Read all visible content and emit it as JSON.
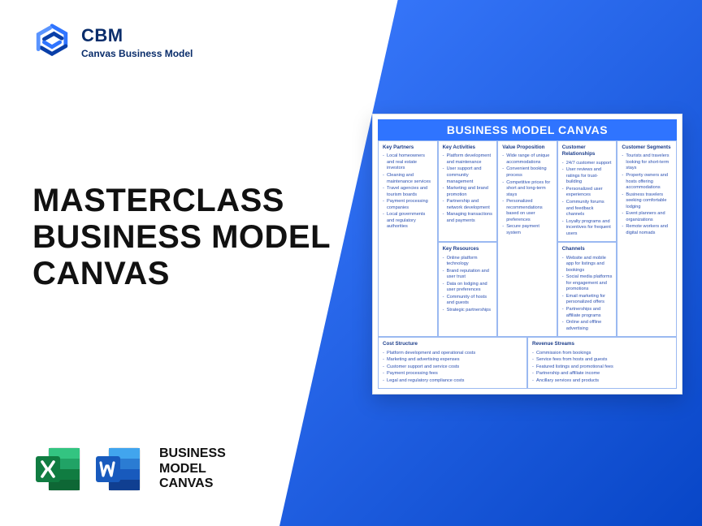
{
  "colors": {
    "blue_gradient_start": "#3b7bff",
    "blue_gradient_end": "#0846c7",
    "canvas_header": "#2f74ff",
    "cell_border": "#9bb9f1",
    "cell_text": "#2a4fb0",
    "heading_text": "#111111",
    "logo_text": "#0a2d6b",
    "excel_green_dark": "#107c41",
    "excel_green_light": "#21a366",
    "word_blue_dark": "#185abd",
    "word_blue_light": "#2b7cd3"
  },
  "logo": {
    "abbr": "CBM",
    "full": "Canvas Business Model"
  },
  "headline": {
    "line1": "MASTERCLASS",
    "line2": "BUSINESS MODEL",
    "line3": "CANVAS"
  },
  "bottom_label": {
    "line1": "BUSINESS",
    "line2": "MODEL",
    "line3": "CANVAS"
  },
  "canvas": {
    "title": "BUSINESS MODEL CANVAS",
    "cells": {
      "key_partners": {
        "title": "Key Partners",
        "items": [
          "Local homeowners and real estate investors",
          "Cleaning and maintenance services",
          "Travel agencies and tourism boards",
          "Payment processing companies",
          "Local governments and regulatory authorities"
        ]
      },
      "key_activities": {
        "title": "Key Activities",
        "items": [
          "Platform development and maintenance",
          "User support and community management",
          "Marketing and brand promotion",
          "Partnership and network development",
          "Managing transactions and payments"
        ]
      },
      "key_resources": {
        "title": "Key Resources",
        "items": [
          "Online platform technology",
          "Brand reputation and user trust",
          "Data on lodging and user preferences",
          "Community of hosts and guests",
          "Strategic partnerships"
        ]
      },
      "value_proposition": {
        "title": "Value Proposition",
        "items": [
          "Wide range of unique accommodations",
          "Convenient booking process",
          "Competitive prices for short and long-term stays",
          "Personalized recommendations based on user preferences",
          "Secure payment system"
        ]
      },
      "customer_relationships": {
        "title": "Customer Relationships",
        "items": [
          "24/7 customer support",
          "User reviews and ratings for trust-building",
          "Personalized user experiences",
          "Community forums and feedback channels",
          "Loyalty programs and incentives for frequent users"
        ]
      },
      "channels": {
        "title": "Channels",
        "items": [
          "Website and mobile app for listings and bookings",
          "Social media platforms for engagement and promotions",
          "Email marketing for personalized offers",
          "Partnerships and affiliate programs",
          "Online and offline advertising"
        ]
      },
      "customer_segments": {
        "title": "Customer Segments",
        "items": [
          "Tourists and travelers looking for short-term stays",
          "Property owners and hosts offering accommodations",
          "Business travelers seeking comfortable lodging",
          "Event planners and organizations",
          "Remote workers and digital nomads"
        ]
      },
      "cost_structure": {
        "title": "Cost Structure",
        "items": [
          "Platform development and operational costs",
          "Marketing and advertising expenses",
          "Customer support and service costs",
          "Payment processing fees",
          "Legal and regulatory compliance costs"
        ]
      },
      "revenue_streams": {
        "title": "Revenue Streams",
        "items": [
          "Commission from bookings",
          "Service fees from hosts and guests",
          "Featured listings and promotional fees",
          "Partnership and affiliate income",
          "Ancillary services and products"
        ]
      }
    }
  }
}
